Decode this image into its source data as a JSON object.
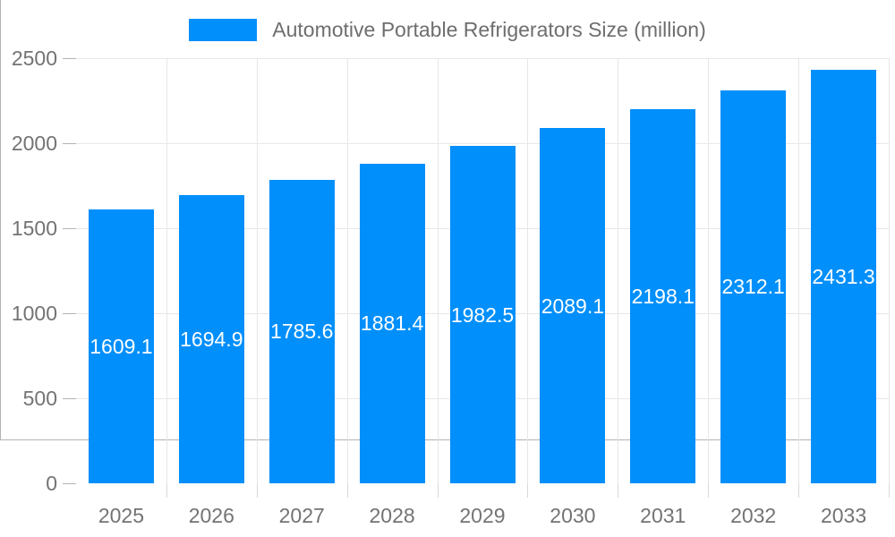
{
  "chart_data": {
    "type": "bar",
    "series_name": "Automotive Portable Refrigerators Size (million)",
    "categories": [
      "2025",
      "2026",
      "2027",
      "2028",
      "2029",
      "2030",
      "2031",
      "2032",
      "2033"
    ],
    "values": [
      1609.1,
      1694.9,
      1785.6,
      1881.4,
      1982.5,
      2089.1,
      2198.1,
      2312.1,
      2431.3
    ],
    "data_labels": [
      "1609.1",
      "1694.9",
      "1785.6",
      "1881.4",
      "1982.5",
      "2089.1",
      "2198.1",
      "2312.1",
      "2431.3"
    ],
    "ylim": [
      0,
      2500
    ],
    "yticks": [
      0,
      500,
      1000,
      1500,
      2000,
      2500
    ],
    "grid": "on",
    "legend_position": "top-center",
    "colors": {
      "bar": "#008FFB",
      "data_label_text": "#ffffff",
      "axis_text": "#737373",
      "legend_text": "#6e6e6e",
      "gridline": "#e7e7e7",
      "axis_line": "#b3b3b3",
      "x_tick": "#d9d9d9",
      "background": "#ffffff"
    }
  }
}
